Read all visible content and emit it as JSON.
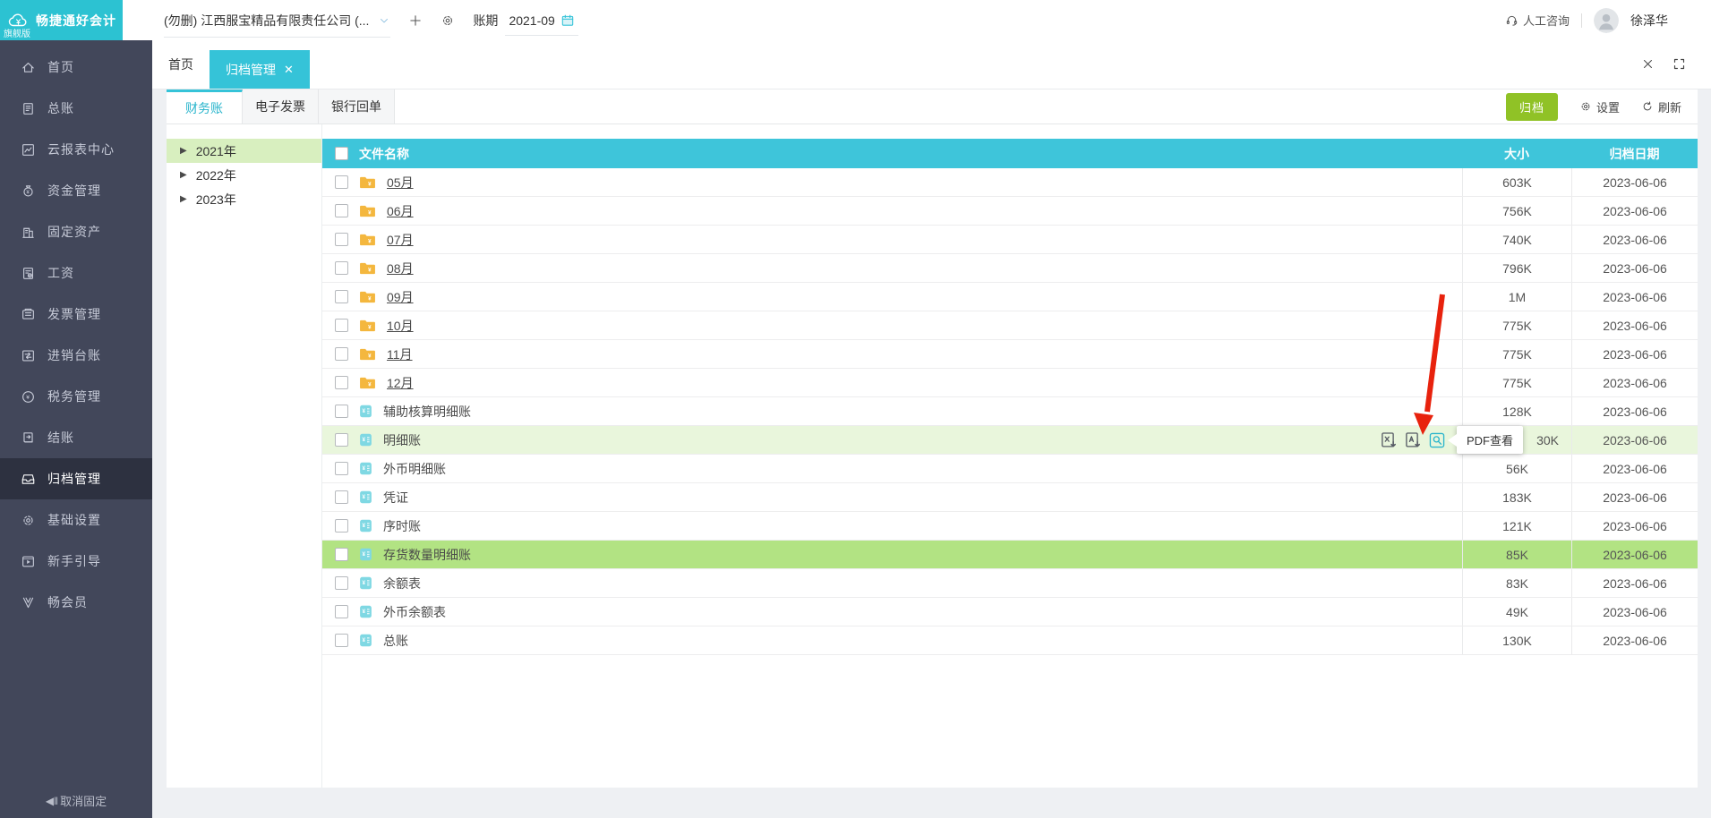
{
  "brand": {
    "title": "畅捷通好会计",
    "edition": "旗舰版"
  },
  "topbar": {
    "company": "(勿删) 江西服宝精品有限责任公司 (...",
    "period_label": "账期",
    "period_value": "2021-09",
    "support_label": "人工咨询",
    "username": "徐泽华"
  },
  "tabs": [
    {
      "label": "首页",
      "active": false,
      "closable": false
    },
    {
      "label": "归档管理",
      "active": true,
      "closable": true
    }
  ],
  "subtabs": [
    {
      "label": "财务账",
      "active": true
    },
    {
      "label": "电子发票",
      "active": false
    },
    {
      "label": "银行回单",
      "active": false
    }
  ],
  "toolbar": {
    "archive_btn": "归档",
    "settings_label": "设置",
    "refresh_label": "刷新"
  },
  "sidebar": {
    "items": [
      {
        "id": "home",
        "icon": "home",
        "label": "首页",
        "active": false
      },
      {
        "id": "ledger",
        "icon": "ledger",
        "label": "总账",
        "active": false
      },
      {
        "id": "report",
        "icon": "report",
        "label": "云报表中心",
        "active": false
      },
      {
        "id": "funds",
        "icon": "funds",
        "label": "资金管理",
        "active": false
      },
      {
        "id": "assets",
        "icon": "assets",
        "label": "固定资产",
        "active": false
      },
      {
        "id": "salary",
        "icon": "salary",
        "label": "工资",
        "active": false
      },
      {
        "id": "invoice",
        "icon": "invoice",
        "label": "发票管理",
        "active": false
      },
      {
        "id": "trade",
        "icon": "trade",
        "label": "进销台账",
        "active": false
      },
      {
        "id": "tax",
        "icon": "tax",
        "label": "税务管理",
        "active": false
      },
      {
        "id": "closing",
        "icon": "closing",
        "label": "结账",
        "active": false
      },
      {
        "id": "archive",
        "icon": "archive",
        "label": "归档管理",
        "active": true
      },
      {
        "id": "settings",
        "icon": "settings",
        "label": "基础设置",
        "active": false
      },
      {
        "id": "guide",
        "icon": "guide",
        "label": "新手引导",
        "active": false
      },
      {
        "id": "member",
        "icon": "member",
        "label": "畅会员",
        "active": false
      }
    ],
    "unpin_label": "取消固定"
  },
  "tree": {
    "years": [
      {
        "label": "2021年",
        "selected": true
      },
      {
        "label": "2022年",
        "selected": false
      },
      {
        "label": "2023年",
        "selected": false
      }
    ]
  },
  "table": {
    "columns": {
      "name": "文件名称",
      "size": "大小",
      "date": "归档日期"
    },
    "rows": [
      {
        "name": "05月",
        "type": "folder",
        "size": "603K",
        "date": "2023-06-06",
        "state": ""
      },
      {
        "name": "06月",
        "type": "folder",
        "size": "756K",
        "date": "2023-06-06",
        "state": ""
      },
      {
        "name": "07月",
        "type": "folder",
        "size": "740K",
        "date": "2023-06-06",
        "state": ""
      },
      {
        "name": "08月",
        "type": "folder",
        "size": "796K",
        "date": "2023-06-06",
        "state": ""
      },
      {
        "name": "09月",
        "type": "folder",
        "size": "1M",
        "date": "2023-06-06",
        "state": ""
      },
      {
        "name": "10月",
        "type": "folder",
        "size": "775K",
        "date": "2023-06-06",
        "state": ""
      },
      {
        "name": "11月",
        "type": "folder",
        "size": "775K",
        "date": "2023-06-06",
        "state": ""
      },
      {
        "name": "12月",
        "type": "folder",
        "size": "775K",
        "date": "2023-06-06",
        "state": ""
      },
      {
        "name": "辅助核算明细账",
        "type": "file",
        "size": "128K",
        "date": "2023-06-06",
        "state": ""
      },
      {
        "name": "明细账",
        "type": "file",
        "size": "30K",
        "date": "2023-06-06",
        "state": "hover",
        "actions": true,
        "tooltip": true
      },
      {
        "name": "外币明细账",
        "type": "file",
        "size": "56K",
        "date": "2023-06-06",
        "state": ""
      },
      {
        "name": "凭证",
        "type": "file",
        "size": "183K",
        "date": "2023-06-06",
        "state": ""
      },
      {
        "name": "序时账",
        "type": "file",
        "size": "121K",
        "date": "2023-06-06",
        "state": ""
      },
      {
        "name": "存货数量明细账",
        "type": "file",
        "size": "85K",
        "date": "2023-06-06",
        "state": "selected"
      },
      {
        "name": "余额表",
        "type": "file",
        "size": "83K",
        "date": "2023-06-06",
        "state": ""
      },
      {
        "name": "外币余额表",
        "type": "file",
        "size": "49K",
        "date": "2023-06-06",
        "state": ""
      },
      {
        "name": "总账",
        "type": "file",
        "size": "130K",
        "date": "2023-06-06",
        "state": ""
      }
    ],
    "row_actions": [
      "export-excel",
      "export-pdf",
      "view-pdf"
    ]
  },
  "tooltip": {
    "text": "PDF查看"
  },
  "colors": {
    "accent_cyan": "#35c3d8",
    "header_cyan": "#3ec5da",
    "sidebar_bg": "#42475a",
    "sidebar_active_bg": "#2d3140",
    "archive_button_green": "#90c226",
    "row_selected_green": "#b2e383",
    "row_hover_green": "#e9f6dc",
    "tree_selected_green": "#d8efbf",
    "annotation_arrow_red": "#e8220d",
    "folder_icon_yellow": "#f4b73e",
    "file_icon_cyan": "#7fd8e3"
  }
}
